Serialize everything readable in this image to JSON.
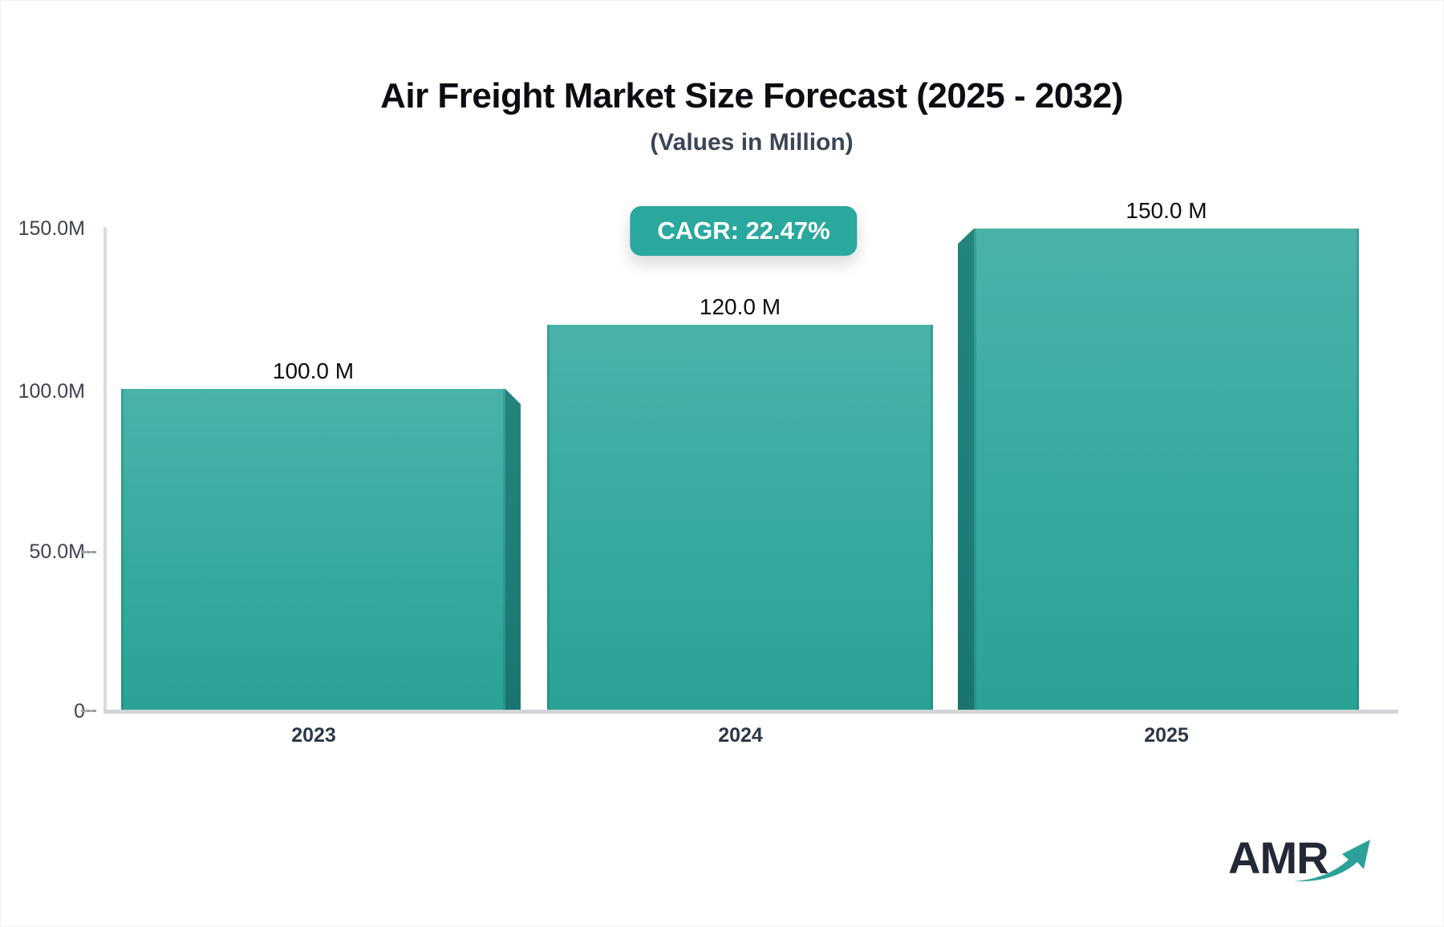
{
  "header": {
    "title": "Air Freight Market Size Forecast (2025 - 2032)",
    "subtitle": "(Values in Million)"
  },
  "badge": {
    "text": "CAGR: 22.47%",
    "bg_color": "#2BA89E",
    "text_color": "#FFFFFF"
  },
  "chart_data": {
    "type": "bar",
    "title": "Air Freight Market Size Forecast (2025 - 2032)",
    "subtitle": "(Values in Million)",
    "unit": "Million",
    "categories": [
      "2023",
      "2024",
      "2025"
    ],
    "values": [
      100.0,
      120.0,
      150.0
    ],
    "value_labels": [
      "100.0 M",
      "120.0 M",
      "150.0 M"
    ],
    "cagr_label": "CAGR: 22.47%",
    "y_axis": {
      "min": 0,
      "max": 150,
      "tick_labels": [
        "150.0M",
        "100.0M",
        "50.0M",
        "0"
      ]
    },
    "grid": false,
    "legend": "none",
    "bar_face_color": "#35A99E",
    "bar_side_color": "#1E7F78",
    "axis_line_color": "#D6D8DA"
  },
  "logo": {
    "text": "AMR",
    "text_color": "#232937",
    "arrow_color": "#2CA197"
  }
}
